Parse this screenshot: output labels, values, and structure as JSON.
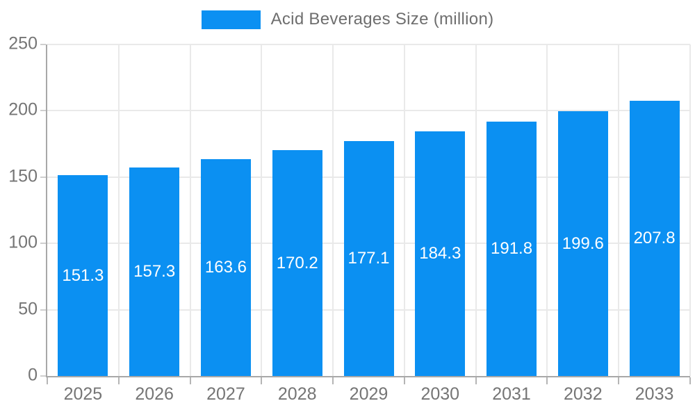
{
  "legend": {
    "label": "Acid Beverages Size (million)"
  },
  "colors": {
    "bar": "#0b90f2",
    "bar_label_text": "#ffffff",
    "axis_text": "#757575",
    "legend_text": "#6e6e6e",
    "gridline": "#e9e9e9",
    "axis_line": "#a8a8a8",
    "background": "#ffffff"
  },
  "chart_data": {
    "type": "bar",
    "title": "Acid Beverages Size (million)",
    "series": [
      {
        "name": "Acid Beverages Size (million)",
        "values": [
          151.3,
          157.3,
          163.6,
          170.2,
          177.1,
          184.3,
          191.8,
          199.6,
          207.8
        ]
      }
    ],
    "categories": [
      "2025",
      "2026",
      "2027",
      "2028",
      "2029",
      "2030",
      "2031",
      "2032",
      "2033"
    ],
    "xlabel": "",
    "ylabel": "",
    "ylim": [
      0,
      250
    ],
    "yticks": [
      0,
      50,
      100,
      150,
      200,
      250
    ],
    "grid": true,
    "grid_vertical": true,
    "legend_position": "top-center",
    "value_labels": "inside-center"
  }
}
